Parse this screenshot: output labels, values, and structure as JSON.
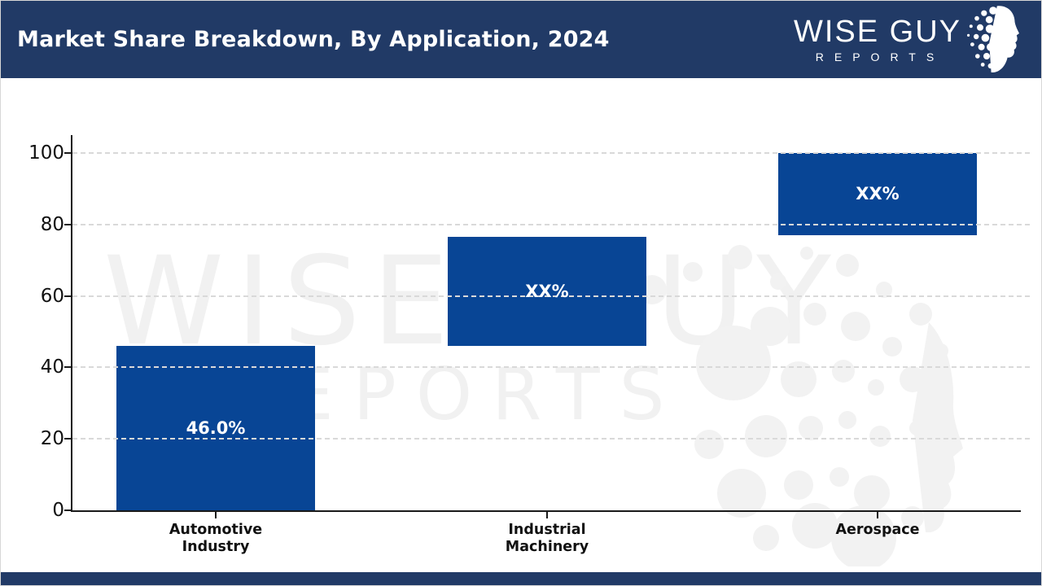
{
  "header": {
    "title": "Market Share Breakdown, By Application, 2024",
    "logo": {
      "wordmark": "WISE GUY",
      "subtext": "REPORTS"
    }
  },
  "watermark": {
    "wordmark": "WISE GUY",
    "subtext": "REPORTS"
  },
  "colors": {
    "header_bg": "#213a66",
    "bar_fill": "#084595",
    "bar_label_text": "#ffffff",
    "gridline": "#d9d9d9",
    "axis": "#1a1a1a",
    "tick_text": "#111111",
    "watermark": "#f1f1f1"
  },
  "chart_data": {
    "type": "bar",
    "subtype": "floating-waterfall",
    "title": "Market Share Breakdown, By Application, 2024",
    "categories": [
      "Automotive Industry",
      "Industrial Machinery",
      "Aerospace"
    ],
    "category_label_lines": [
      [
        "Automotive",
        "Industry"
      ],
      [
        "Industrial",
        "Machinery"
      ],
      [
        "Aerospace"
      ]
    ],
    "bars": [
      {
        "category": "Automotive Industry",
        "from": 0,
        "to": 46,
        "label": "46.0%"
      },
      {
        "category": "Industrial Machinery",
        "from": 46,
        "to": 76.5,
        "label": "XX%"
      },
      {
        "category": "Aerospace",
        "from": 77,
        "to": 100,
        "label": "XX%"
      }
    ],
    "yticks": [
      0,
      20,
      40,
      60,
      80,
      100
    ],
    "ylim": [
      0,
      105
    ],
    "xlabel": "",
    "ylabel": "",
    "grid": "horizontal-dashed-over-bars",
    "legend": "none",
    "bar_color": "#084595",
    "label_color": "#ffffff"
  }
}
